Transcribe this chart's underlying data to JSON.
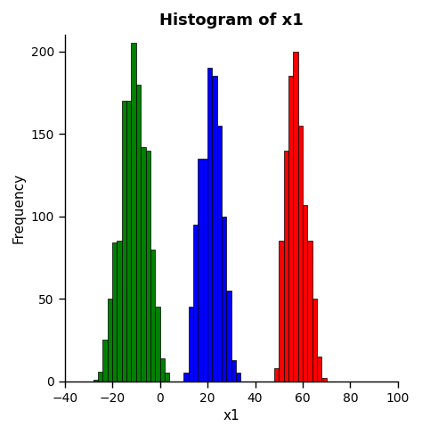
{
  "title": "Histogram of x1",
  "xlabel": "x1",
  "ylabel": "Frequency",
  "colors": [
    "green",
    "blue",
    "red"
  ],
  "edgecolor": "black",
  "linewidth": 0.5,
  "xlim": [
    -40,
    100
  ],
  "ylim": [
    0,
    210
  ],
  "yticks": [
    0,
    50,
    100,
    150,
    200
  ],
  "xticks": [
    -40,
    -20,
    0,
    20,
    40,
    60,
    80,
    100
  ],
  "title_fontsize": 13,
  "axis_fontsize": 11,
  "tick_fontsize": 10,
  "bg_color": "white",
  "bin_width": 2,
  "green_bins_start": -28,
  "green_counts": [
    1,
    6,
    25,
    50,
    84,
    85,
    170,
    170,
    205,
    180,
    142,
    140,
    80,
    45,
    14,
    5
  ],
  "blue_bins_start": 10,
  "blue_counts": [
    5,
    45,
    95,
    135,
    135,
    190,
    185,
    155,
    100,
    55,
    13,
    5
  ],
  "red_bins_start": 48,
  "red_counts": [
    8,
    85,
    140,
    185,
    200,
    155,
    107,
    85,
    50,
    15,
    2
  ]
}
